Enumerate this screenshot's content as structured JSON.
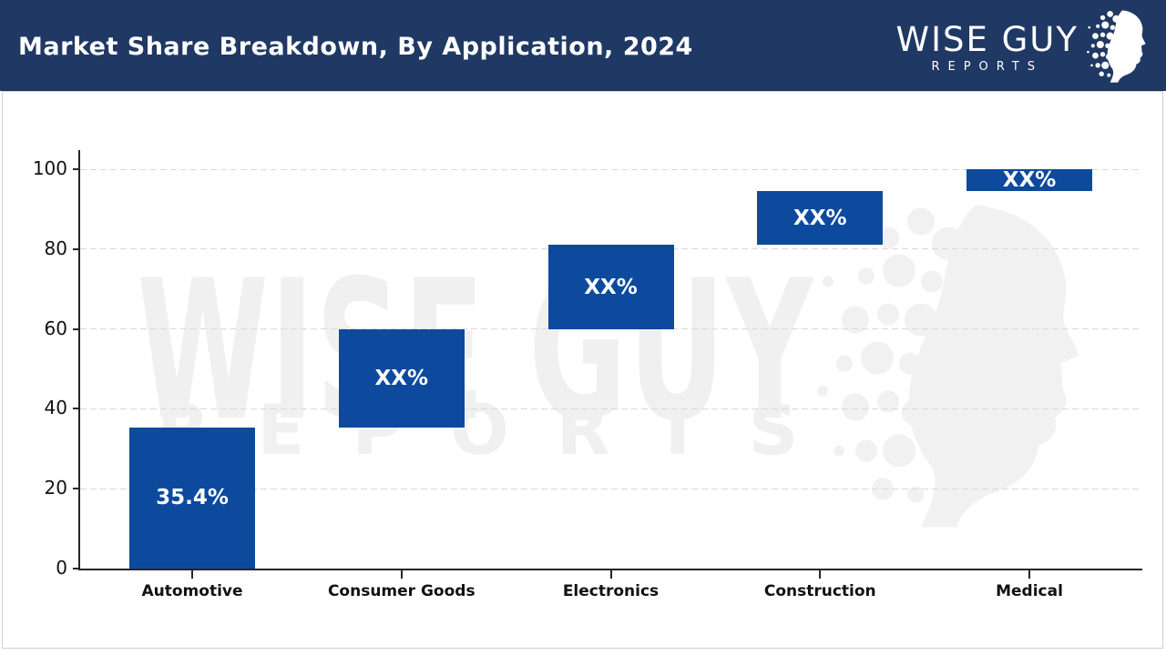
{
  "header": {
    "title": "Market Share Breakdown, By Application, 2024",
    "bg_color": "#1f3864",
    "logo": {
      "line1": "WISE GUY",
      "line2": "REPORTS"
    }
  },
  "watermark": {
    "line1": "WISE GUY",
    "line2": "REPORTS"
  },
  "chart_data": {
    "type": "bar",
    "subtype": "waterfall",
    "title": "Market Share Breakdown, By Application, 2024",
    "categories": [
      "Automotive",
      "Consumer Goods",
      "Electronics",
      "Construction",
      "Medical"
    ],
    "segments": [
      {
        "category": "Automotive",
        "label": "35.4%",
        "start": 0,
        "end": 35.4
      },
      {
        "category": "Consumer Goods",
        "label": "XX%",
        "start": 35.4,
        "end": 60
      },
      {
        "category": "Electronics",
        "label": "XX%",
        "start": 60,
        "end": 81
      },
      {
        "category": "Construction",
        "label": "XX%",
        "start": 81,
        "end": 94.5
      },
      {
        "category": "Medical",
        "label": "XX%",
        "start": 94.5,
        "end": 100
      }
    ],
    "yticks": [
      0,
      20,
      40,
      60,
      80,
      100
    ],
    "ylim": [
      0,
      105
    ],
    "xlabel": "",
    "ylabel": "",
    "grid": "horizontal-dashed",
    "bar_color": "#0d4a9e",
    "bar_label_color": "#ffffff",
    "axis_color": "#262626",
    "grid_color": "#d9d9d9"
  }
}
